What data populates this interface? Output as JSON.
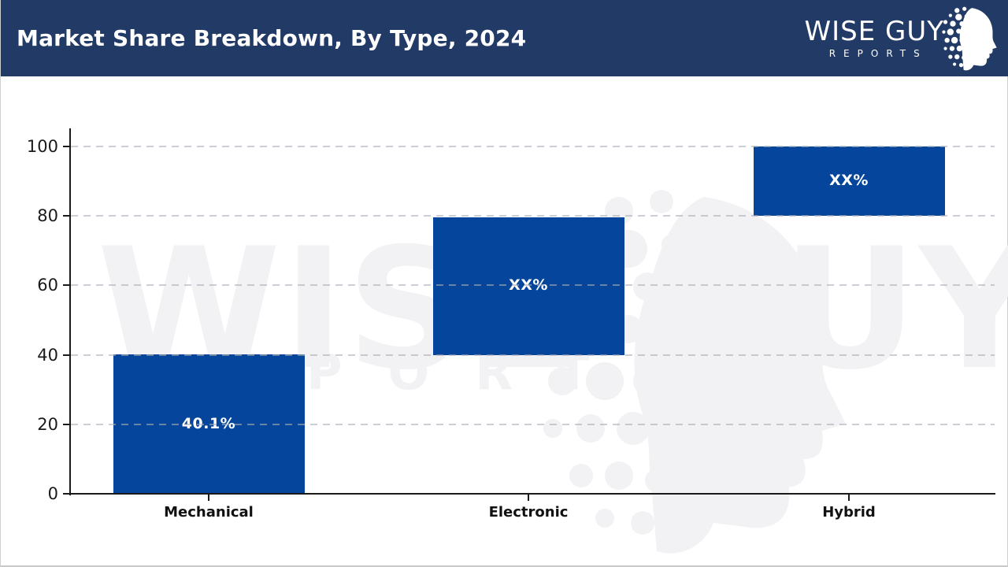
{
  "header": {
    "title": "Market Share Breakdown, By Type, 2024",
    "logo": {
      "name": "WISE GUY",
      "subtitle": "REPORTS"
    }
  },
  "watermark": {
    "name": "WISE GUY",
    "subtitle": "REPORTS"
  },
  "chart_data": {
    "type": "bar",
    "subtype": "floating-waterfall",
    "title": "Market Share Breakdown, By Type, 2024",
    "categories": [
      "Mechanical",
      "Electronic",
      "Hybrid"
    ],
    "segments": [
      {
        "category": "Mechanical",
        "start": 0,
        "end": 40.1,
        "label": "40.1%"
      },
      {
        "category": "Electronic",
        "start": 40,
        "end": 79.5,
        "label": "XX%"
      },
      {
        "category": "Hybrid",
        "start": 80,
        "end": 100,
        "label": "XX%"
      }
    ],
    "yticks": [
      0,
      20,
      40,
      60,
      80,
      100
    ],
    "ylim": [
      0,
      105
    ],
    "grid": {
      "axis": "y",
      "style": "dashed"
    },
    "legend": "none",
    "colors": {
      "bar": "#05469C",
      "bar_label": "#FFFFFF",
      "grid": "#D8D8D8",
      "axis": "#1A1A1A",
      "tick_label": "#1A1A1A"
    }
  },
  "colors": {
    "header_bg": "#223A66",
    "header_text": "#FFFFFF",
    "page_bg": "#FFFFFF",
    "watermark": "#F2F2F4"
  }
}
